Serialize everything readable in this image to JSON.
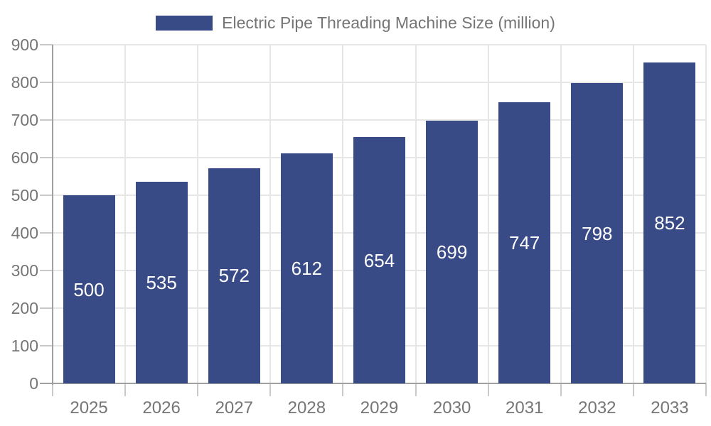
{
  "legend": {
    "label": "Electric Pipe Threading Machine Size (million)"
  },
  "chart_data": {
    "type": "bar",
    "title": "Electric Pipe Threading Machine Size (million)",
    "categories": [
      "2025",
      "2026",
      "2027",
      "2028",
      "2029",
      "2030",
      "2031",
      "2032",
      "2033"
    ],
    "values": [
      500,
      535,
      572,
      612,
      654,
      699,
      747,
      798,
      852
    ],
    "series": [
      {
        "name": "Electric Pipe Threading Machine Size (million)",
        "values": [
          500,
          535,
          572,
          612,
          654,
          699,
          747,
          798,
          852
        ]
      }
    ],
    "xlabel": "",
    "ylabel": "",
    "ylim": [
      0,
      900
    ],
    "yticks": [
      0,
      100,
      200,
      300,
      400,
      500,
      600,
      700,
      800,
      900
    ],
    "grid": true,
    "legend_position": "top",
    "bar_color": "#394B87",
    "bar_label_color": "#ffffff",
    "axis_text_color": "#757575",
    "grid_color": "#e6e6e6",
    "axis_line_color": "#a0a0a0",
    "tick_color": "#c9c9c9"
  }
}
